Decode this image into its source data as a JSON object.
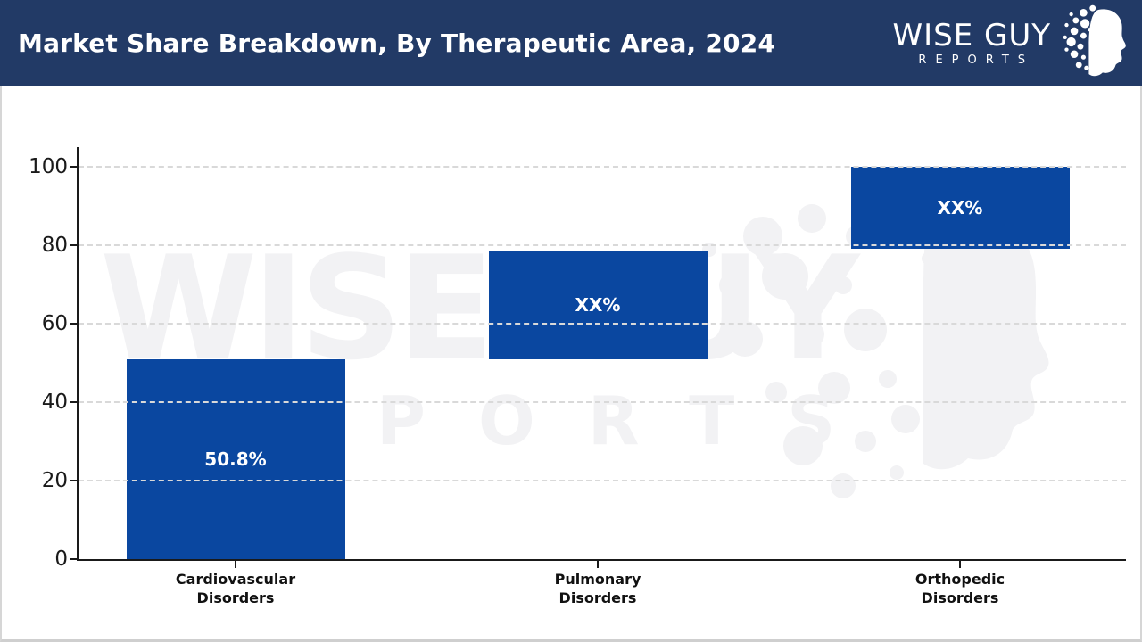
{
  "header": {
    "title": "Market Share Breakdown, By Therapeutic Area, 2024",
    "logo_line1": "WISE GUY",
    "logo_line2": "REPORTS",
    "bg_color": "#223A66"
  },
  "watermark": {
    "line1": "WISE GUY",
    "line2": "REPORTS"
  },
  "chart_data": {
    "type": "bar",
    "subtype": "floating-waterfall",
    "title": "Market Share Breakdown, By Therapeutic Area, 2024",
    "categories": [
      "Cardiovascular\nDisorders",
      "Pulmonary\nDisorders",
      "Orthopedic\nDisorders"
    ],
    "series": [
      {
        "name": "Cardiovascular Disorders",
        "start": 0,
        "end": 50.8,
        "label": "50.8%"
      },
      {
        "name": "Pulmonary Disorders",
        "start": 50.8,
        "end": 78.6,
        "label": "XX%"
      },
      {
        "name": "Orthopedic Disorders",
        "start": 79.0,
        "end": 100.0,
        "label": "XX%"
      }
    ],
    "ylim": [
      0,
      105
    ],
    "yticks": [
      0,
      20,
      40,
      60,
      80,
      100
    ],
    "grid": {
      "axis": "y",
      "style": "dashed",
      "color": "#d9d9d9",
      "on": true
    },
    "legend": {
      "visible": false
    },
    "bar_color": "#0A47A0",
    "bar_label_color": "#ffffff",
    "axis_color": "#1a1a1a"
  }
}
